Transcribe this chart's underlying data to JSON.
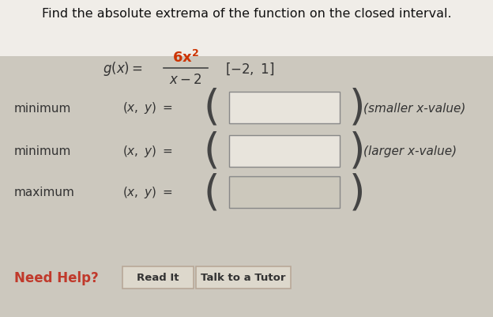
{
  "title": "Find the absolute extrema of the function on the closed interval.",
  "title_fontsize": 11.5,
  "title_color": "#111111",
  "bg_color": "#ccc8be",
  "top_bg": "#f0ede8",
  "function_numerator": "6x²",
  "function_denominator": "x − 2",
  "function_interval": "[−2, 1]",
  "rows": [
    {
      "label": "minimum",
      "note": "(smaller x-value)"
    },
    {
      "label": "minimum",
      "note": "(larger x-value)"
    },
    {
      "label": "maximum",
      "note": ""
    }
  ],
  "need_help_color": "#c0392b",
  "need_help_text": "Need Help?",
  "button1": "Read It",
  "button2": "Talk to a Tutor",
  "label_fontsize": 11,
  "expr_fontsize": 11,
  "note_fontsize": 11,
  "box_fill_light": "#e8e4dc",
  "box_fill_dark": "#ccc8bc",
  "box_edge": "#888888",
  "text_color": "#333333",
  "num_color": "#cc3300"
}
